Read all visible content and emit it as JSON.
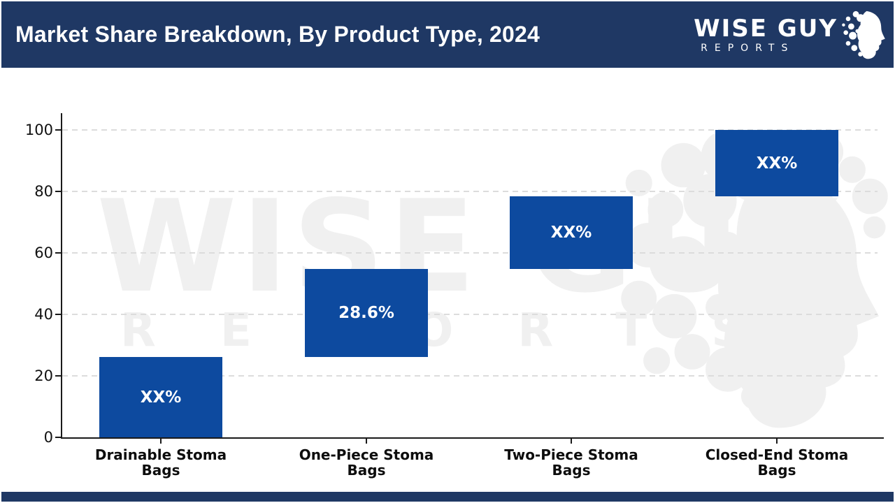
{
  "header": {
    "title": "Market Share Breakdown, By Product Type, 2024",
    "brand": {
      "line1": "WISE GUY",
      "line2": "REPORTS"
    }
  },
  "watermark": {
    "line1": "WISE GUY",
    "line2": "REPORTS"
  },
  "colors": {
    "header_bg": "#1f3864",
    "bar": "#0d4a9f",
    "watermark": "#f0f0f0",
    "grid": "#dcdcdc",
    "axis": "#1a1a1a",
    "bar_label_text": "#ffffff",
    "tick_text": "#111111"
  },
  "chart_data": {
    "type": "bar",
    "subtype": "waterfall",
    "title": "Market Share Breakdown, By Product Type, 2024",
    "categories": [
      "Drainable Stoma Bags",
      "One-Piece Stoma Bags",
      "Two-Piece Stoma Bags",
      "Closed-End Stoma Bags"
    ],
    "segments": [
      {
        "category": "Drainable Stoma Bags",
        "start": 0,
        "end": 26.1,
        "value": 26.1,
        "label": "XX%"
      },
      {
        "category": "One-Piece Stoma Bags",
        "start": 26.1,
        "end": 54.7,
        "value": 28.6,
        "label": "28.6%"
      },
      {
        "category": "Two-Piece Stoma Bags",
        "start": 54.7,
        "end": 78.4,
        "value": 23.7,
        "label": "XX%"
      },
      {
        "category": "Closed-End Stoma Bags",
        "start": 78.4,
        "end": 100,
        "value": 21.6,
        "label": "XX%"
      }
    ],
    "xlabel": "",
    "ylabel": "",
    "ylim": [
      0,
      100
    ],
    "yticks": [
      0,
      20,
      40,
      60,
      80,
      100
    ],
    "grid": "horizontal-dashed",
    "legend": "none"
  }
}
